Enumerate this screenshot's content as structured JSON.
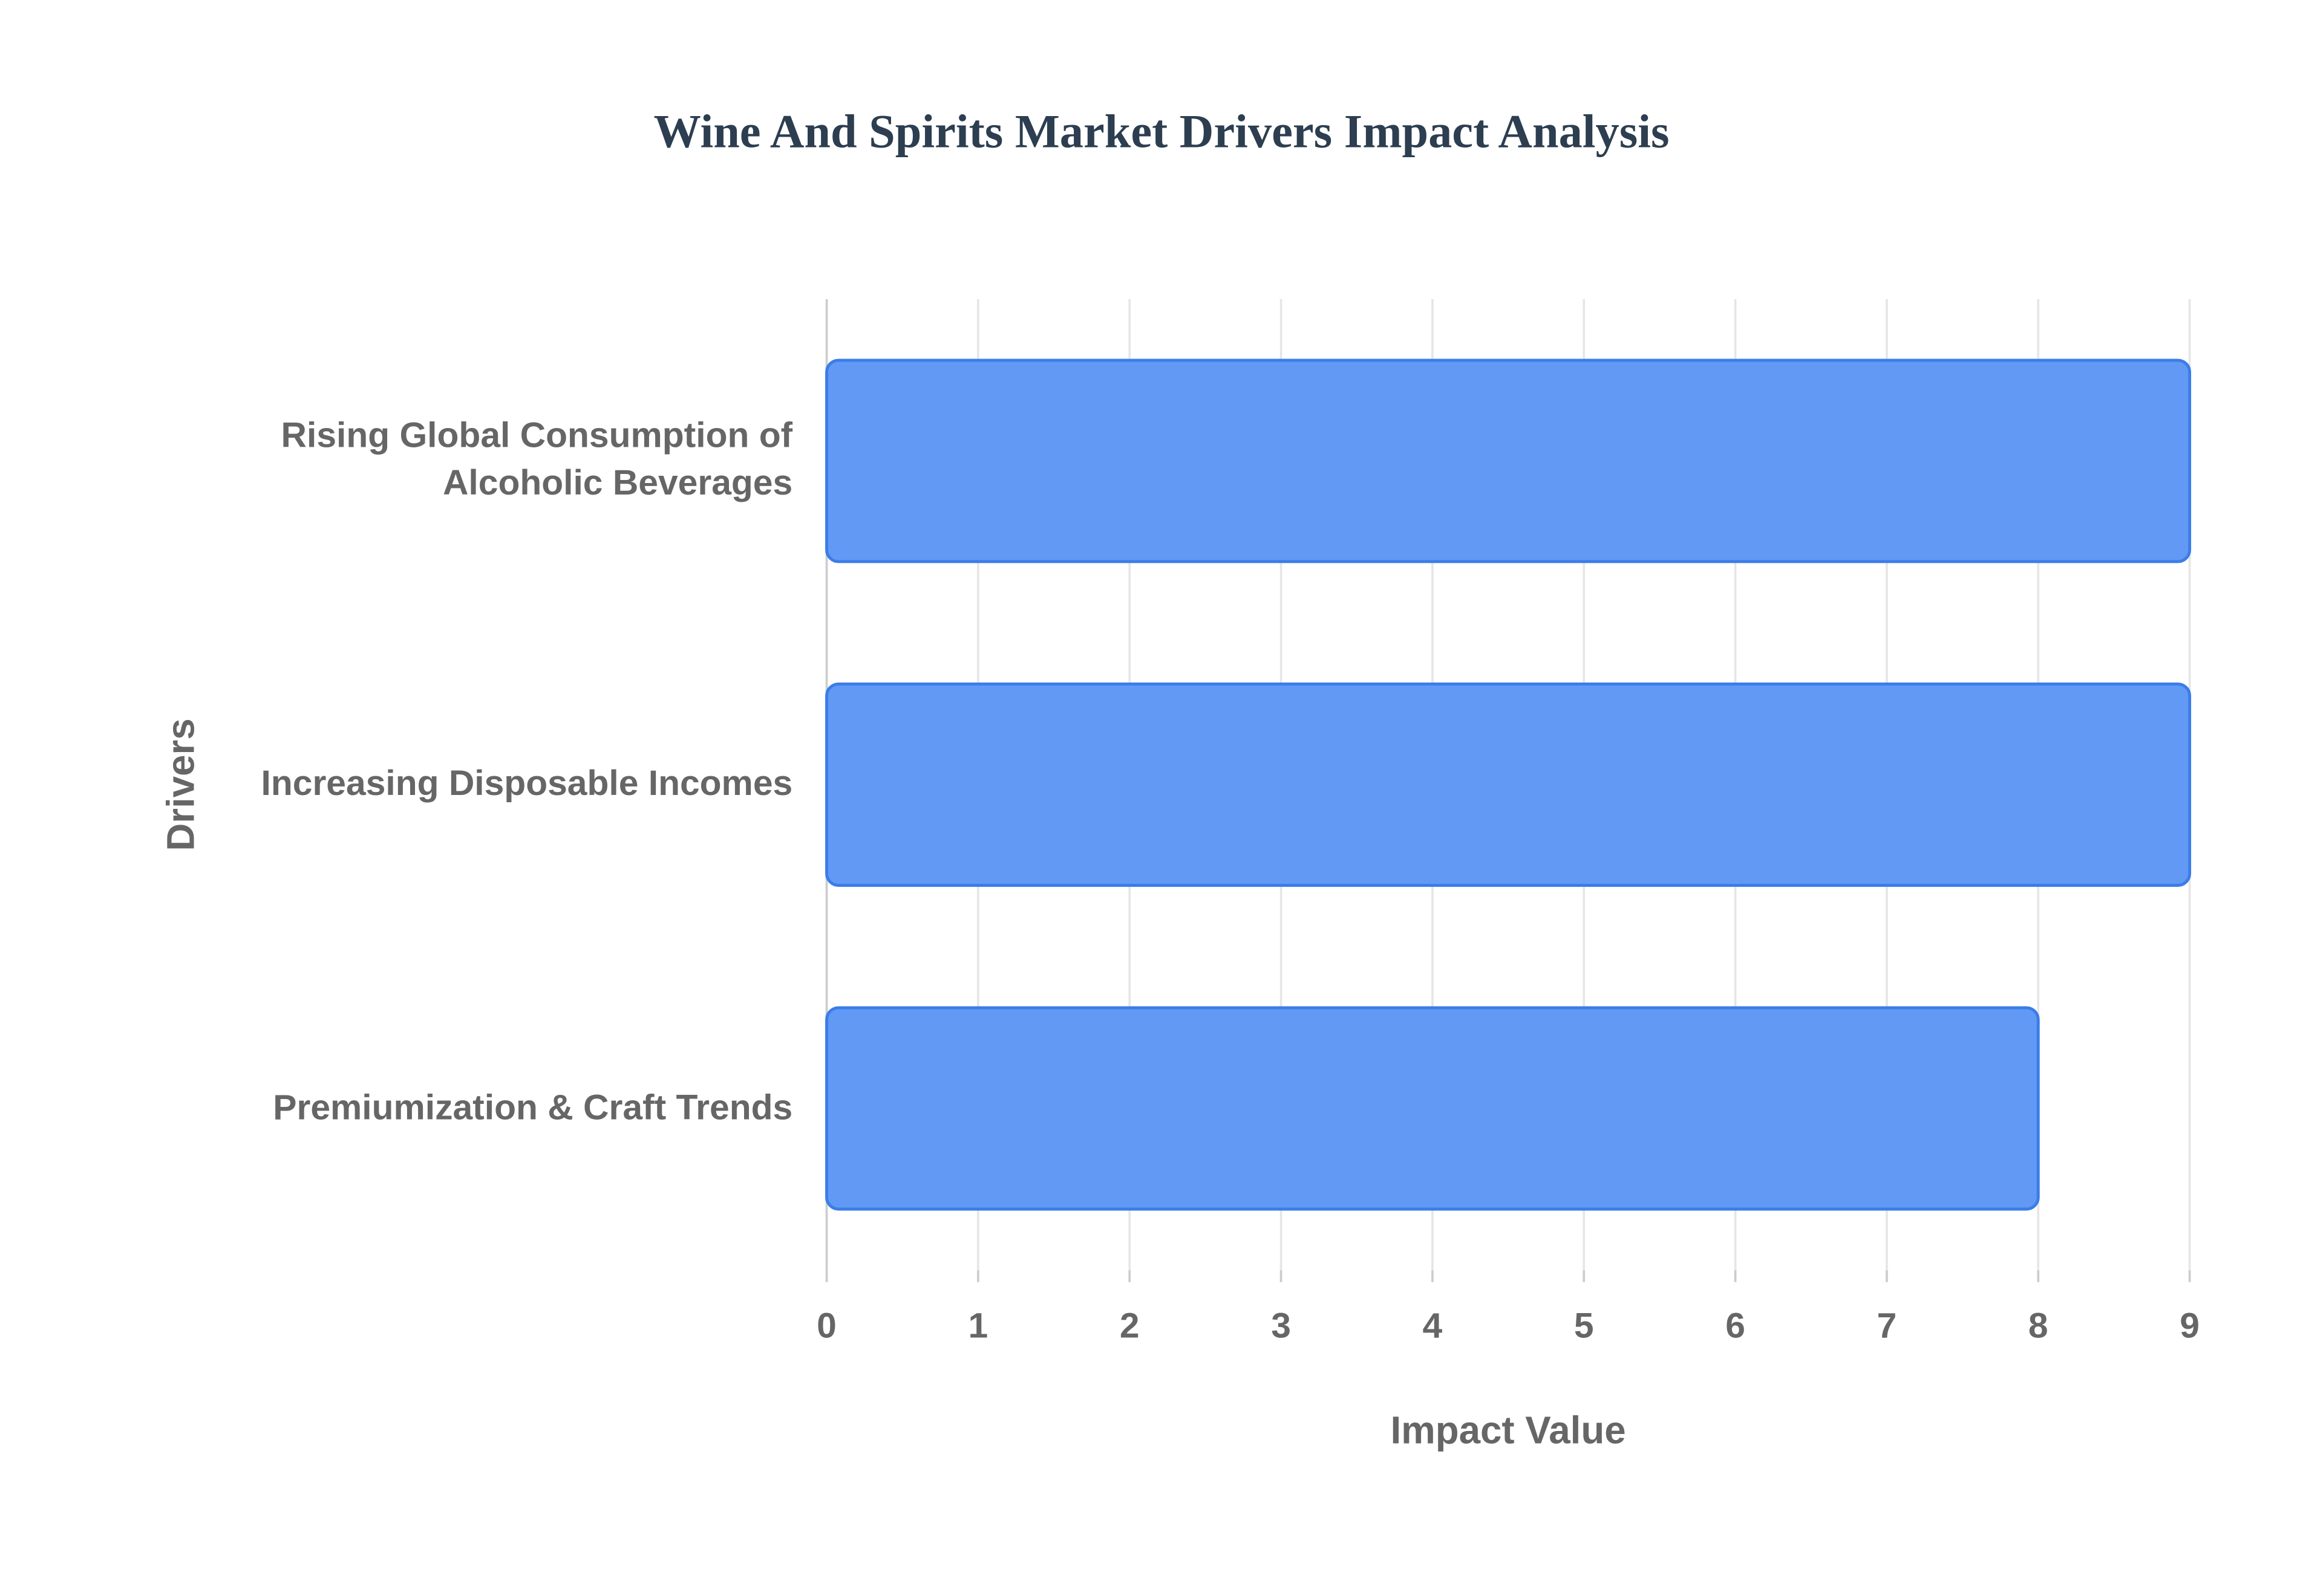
{
  "chart_data": {
    "type": "hbar",
    "title": "Wine And Spirits Market Drivers Impact Analysis",
    "x_label": "Impact Value",
    "y_label": "Drivers",
    "categories": [
      "Rising Global Consumption of Alcoholic Beverages",
      "Increasing Disposable Incomes",
      "Premiumization & Craft Trends"
    ],
    "values": [
      9,
      9,
      8
    ],
    "color": "#6199f5",
    "xlim": [
      0,
      9
    ],
    "xticks": [
      0,
      1,
      2,
      3,
      4,
      5,
      6,
      7,
      8,
      9
    ],
    "grid": true
  }
}
